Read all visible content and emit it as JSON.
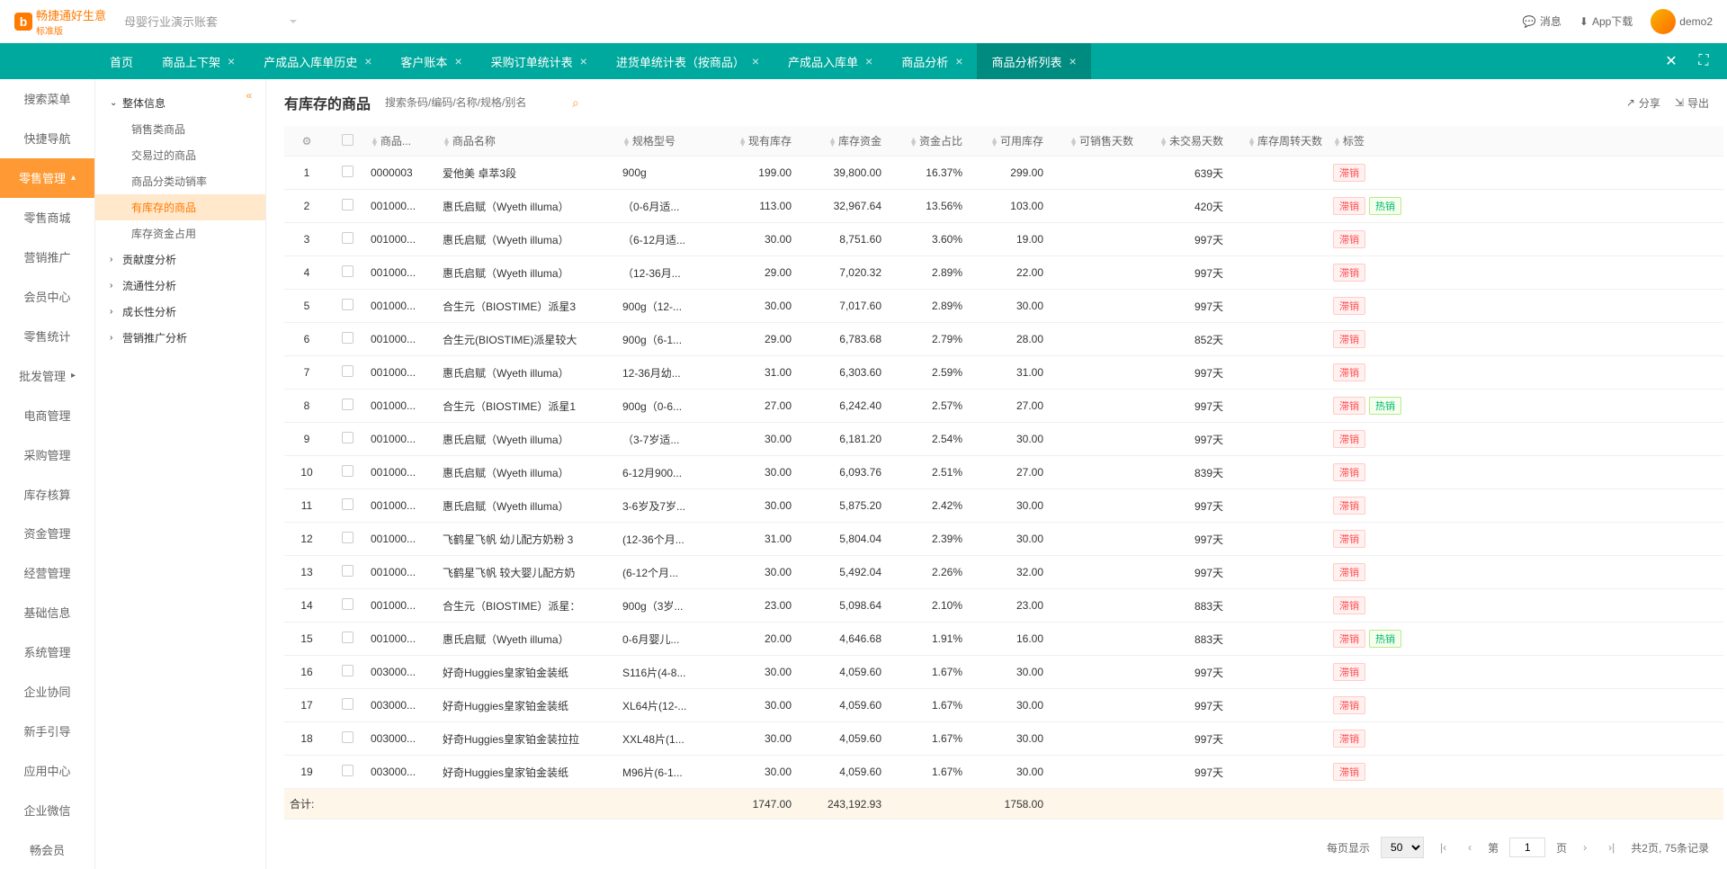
{
  "brand": {
    "name": "畅捷通好生意",
    "edition": "标准版"
  },
  "accountSelector": "母婴行业演示账套",
  "topbarRight": {
    "message": "消息",
    "appDownload": "App下载",
    "user": "demo2"
  },
  "tabs": [
    {
      "label": "首页",
      "closable": false
    },
    {
      "label": "商品上下架",
      "closable": true
    },
    {
      "label": "产成品入库单历史",
      "closable": true
    },
    {
      "label": "客户账本",
      "closable": true
    },
    {
      "label": "采购订单统计表",
      "closable": true
    },
    {
      "label": "进货单统计表（按商品）",
      "closable": true
    },
    {
      "label": "产成品入库单",
      "closable": true
    },
    {
      "label": "商品分析",
      "closable": true
    },
    {
      "label": "商品分析列表",
      "closable": true,
      "active": true
    }
  ],
  "sidebar": [
    {
      "label": "搜索菜单"
    },
    {
      "label": "快捷导航"
    },
    {
      "label": "零售管理",
      "active": true,
      "expanded": true
    },
    {
      "label": "零售商城"
    },
    {
      "label": "营销推广"
    },
    {
      "label": "会员中心"
    },
    {
      "label": "零售统计"
    },
    {
      "label": "批发管理",
      "caret": true
    },
    {
      "label": "电商管理"
    },
    {
      "label": "采购管理"
    },
    {
      "label": "库存核算"
    },
    {
      "label": "资金管理"
    },
    {
      "label": "经营管理"
    },
    {
      "label": "基础信息"
    },
    {
      "label": "系统管理"
    },
    {
      "label": "企业协同"
    },
    {
      "label": "新手引导"
    },
    {
      "label": "应用中心"
    },
    {
      "label": "企业微信"
    },
    {
      "label": "畅会员"
    }
  ],
  "tree": {
    "root": "整体信息",
    "groups": [
      {
        "label": "销售类商品"
      },
      {
        "label": "交易过的商品"
      },
      {
        "label": "商品分类动销率"
      },
      {
        "label": "有库存的商品",
        "active": true
      },
      {
        "label": "库存资金占用"
      }
    ],
    "sections": [
      {
        "label": "贡献度分析"
      },
      {
        "label": "流通性分析"
      },
      {
        "label": "成长性分析"
      },
      {
        "label": "营销推广分析"
      }
    ]
  },
  "page": {
    "title": "有库存的商品",
    "searchPlaceholder": "搜索条码/编码/名称/规格/别名",
    "share": "分享",
    "export": "导出"
  },
  "columns": [
    "",
    "",
    "商品...",
    "商品名称",
    "规格型号",
    "现有库存",
    "库存资金",
    "资金占比",
    "可用库存",
    "可销售天数",
    "未交易天数",
    "库存周转天数",
    "标签"
  ],
  "rows": [
    {
      "n": 1,
      "code": "0000003",
      "name": "爱他美 卓萃3段",
      "spec": "900g",
      "stock": "199.00",
      "fund": "39,800.00",
      "pct": "16.37%",
      "avail": "299.00",
      "sale": "",
      "notrade": "639天",
      "turn": "",
      "tags": [
        "滞销"
      ]
    },
    {
      "n": 2,
      "code": "001000...",
      "name": "惠氏启赋（Wyeth illuma）",
      "spec": "（0-6月适...",
      "stock": "113.00",
      "fund": "32,967.64",
      "pct": "13.56%",
      "avail": "103.00",
      "sale": "",
      "notrade": "420天",
      "turn": "",
      "tags": [
        "滞销",
        "热销"
      ]
    },
    {
      "n": 3,
      "code": "001000...",
      "name": "惠氏启赋（Wyeth illuma）",
      "spec": "（6-12月适...",
      "stock": "30.00",
      "fund": "8,751.60",
      "pct": "3.60%",
      "avail": "19.00",
      "sale": "",
      "notrade": "997天",
      "turn": "",
      "tags": [
        "滞销"
      ]
    },
    {
      "n": 4,
      "code": "001000...",
      "name": "惠氏启赋（Wyeth illuma）",
      "spec": "（12-36月...",
      "stock": "29.00",
      "fund": "7,020.32",
      "pct": "2.89%",
      "avail": "22.00",
      "sale": "",
      "notrade": "997天",
      "turn": "",
      "tags": [
        "滞销"
      ]
    },
    {
      "n": 5,
      "code": "001000...",
      "name": "合生元（BIOSTIME）派星3",
      "spec": "900g（12-...",
      "stock": "30.00",
      "fund": "7,017.60",
      "pct": "2.89%",
      "avail": "30.00",
      "sale": "",
      "notrade": "997天",
      "turn": "",
      "tags": [
        "滞销"
      ]
    },
    {
      "n": 6,
      "code": "001000...",
      "name": "合生元(BIOSTIME)派星较大",
      "spec": "900g（6-1...",
      "stock": "29.00",
      "fund": "6,783.68",
      "pct": "2.79%",
      "avail": "28.00",
      "sale": "",
      "notrade": "852天",
      "turn": "",
      "tags": [
        "滞销"
      ]
    },
    {
      "n": 7,
      "code": "001000...",
      "name": "惠氏启赋（Wyeth illuma）",
      "spec": "12-36月幼...",
      "stock": "31.00",
      "fund": "6,303.60",
      "pct": "2.59%",
      "avail": "31.00",
      "sale": "",
      "notrade": "997天",
      "turn": "",
      "tags": [
        "滞销"
      ]
    },
    {
      "n": 8,
      "code": "001000...",
      "name": "合生元（BIOSTIME）派星1",
      "spec": "900g（0-6...",
      "stock": "27.00",
      "fund": "6,242.40",
      "pct": "2.57%",
      "avail": "27.00",
      "sale": "",
      "notrade": "997天",
      "turn": "",
      "tags": [
        "滞销",
        "热销"
      ]
    },
    {
      "n": 9,
      "code": "001000...",
      "name": "惠氏启赋（Wyeth illuma）",
      "spec": "（3-7岁适...",
      "stock": "30.00",
      "fund": "6,181.20",
      "pct": "2.54%",
      "avail": "30.00",
      "sale": "",
      "notrade": "997天",
      "turn": "",
      "tags": [
        "滞销"
      ]
    },
    {
      "n": 10,
      "code": "001000...",
      "name": "惠氏启赋（Wyeth illuma）",
      "spec": "6-12月900...",
      "stock": "30.00",
      "fund": "6,093.76",
      "pct": "2.51%",
      "avail": "27.00",
      "sale": "",
      "notrade": "839天",
      "turn": "",
      "tags": [
        "滞销"
      ]
    },
    {
      "n": 11,
      "code": "001000...",
      "name": "惠氏启赋（Wyeth illuma）",
      "spec": "3-6岁及7岁...",
      "stock": "30.00",
      "fund": "5,875.20",
      "pct": "2.42%",
      "avail": "30.00",
      "sale": "",
      "notrade": "997天",
      "turn": "",
      "tags": [
        "滞销"
      ]
    },
    {
      "n": 12,
      "code": "001000...",
      "name": "飞鹤星飞帆 幼儿配方奶粉 3",
      "spec": "(12-36个月...",
      "stock": "31.00",
      "fund": "5,804.04",
      "pct": "2.39%",
      "avail": "30.00",
      "sale": "",
      "notrade": "997天",
      "turn": "",
      "tags": [
        "滞销"
      ]
    },
    {
      "n": 13,
      "code": "001000...",
      "name": "飞鹤星飞帆 较大婴儿配方奶",
      "spec": "(6-12个月...",
      "stock": "30.00",
      "fund": "5,492.04",
      "pct": "2.26%",
      "avail": "32.00",
      "sale": "",
      "notrade": "997天",
      "turn": "",
      "tags": [
        "滞销"
      ]
    },
    {
      "n": 14,
      "code": "001000...",
      "name": "合生元（BIOSTIME）派星：",
      "spec": "900g（3岁...",
      "stock": "23.00",
      "fund": "5,098.64",
      "pct": "2.10%",
      "avail": "23.00",
      "sale": "",
      "notrade": "883天",
      "turn": "",
      "tags": [
        "滞销"
      ]
    },
    {
      "n": 15,
      "code": "001000...",
      "name": "惠氏启赋（Wyeth illuma）",
      "spec": "0-6月婴儿...",
      "stock": "20.00",
      "fund": "4,646.68",
      "pct": "1.91%",
      "avail": "16.00",
      "sale": "",
      "notrade": "883天",
      "turn": "",
      "tags": [
        "滞销",
        "热销"
      ]
    },
    {
      "n": 16,
      "code": "003000...",
      "name": "好奇Huggies皇家铂金装纸",
      "spec": "S116片(4-8...",
      "stock": "30.00",
      "fund": "4,059.60",
      "pct": "1.67%",
      "avail": "30.00",
      "sale": "",
      "notrade": "997天",
      "turn": "",
      "tags": [
        "滞销"
      ]
    },
    {
      "n": 17,
      "code": "003000...",
      "name": "好奇Huggies皇家铂金装纸",
      "spec": "XL64片(12-...",
      "stock": "30.00",
      "fund": "4,059.60",
      "pct": "1.67%",
      "avail": "30.00",
      "sale": "",
      "notrade": "997天",
      "turn": "",
      "tags": [
        "滞销"
      ]
    },
    {
      "n": 18,
      "code": "003000...",
      "name": "好奇Huggies皇家铂金装拉拉",
      "spec": "XXL48片(1...",
      "stock": "30.00",
      "fund": "4,059.60",
      "pct": "1.67%",
      "avail": "30.00",
      "sale": "",
      "notrade": "997天",
      "turn": "",
      "tags": [
        "滞销"
      ]
    },
    {
      "n": 19,
      "code": "003000...",
      "name": "好奇Huggies皇家铂金装纸",
      "spec": "M96片(6-1...",
      "stock": "30.00",
      "fund": "4,059.60",
      "pct": "1.67%",
      "avail": "30.00",
      "sale": "",
      "notrade": "997天",
      "turn": "",
      "tags": [
        "滞销"
      ]
    }
  ],
  "totals": {
    "label": "合计:",
    "stock": "1747.00",
    "fund": "243,192.93",
    "avail": "1758.00"
  },
  "pager": {
    "perPageLabel": "每页显示",
    "perPage": "50",
    "pageLabel1": "第",
    "page": "1",
    "pageLabel2": "页",
    "summary": "共2页, 75条记录"
  }
}
